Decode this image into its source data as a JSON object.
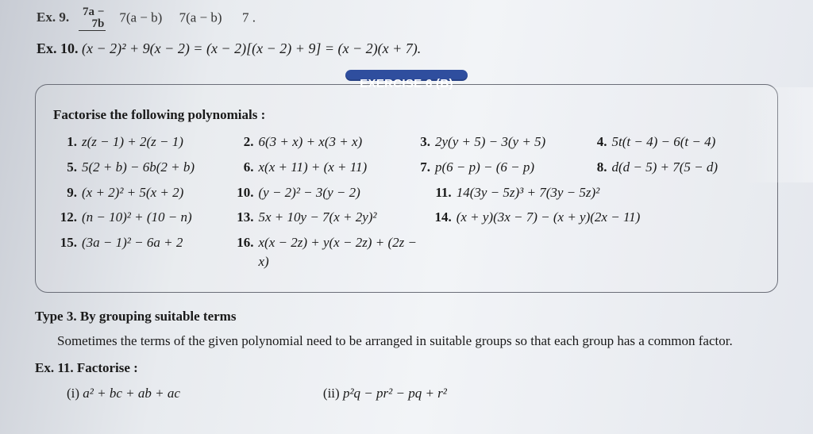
{
  "topline": {
    "ex": "Ex. 9.",
    "f1n": "7a − 7b",
    "t1": "7(a − b)",
    "t2": "7(a − b)",
    "t3": "7"
  },
  "ex10": {
    "label": "Ex. 10.",
    "expr": "(x − 2)² + 9(x − 2) = (x − 2)[(x − 2) + 9] = (x − 2)(x + 7)."
  },
  "pill": "EXERCISE 6 (B)",
  "instruction": "Factorise the following polynomials :",
  "items": [
    {
      "n": "1.",
      "e": "z(z − 1) + 2(z − 1)",
      "w": "w1"
    },
    {
      "n": "2.",
      "e": "6(3 + x) + x(3 + x)",
      "w": "w1"
    },
    {
      "n": "3.",
      "e": "2y(y + 5) − 3(y + 5)",
      "w": "w1"
    },
    {
      "n": "4.",
      "e": "5t(t − 4) − 6(t − 4)",
      "w": "w1"
    },
    {
      "n": "5.",
      "e": "5(2 + b) − 6b(2 + b)",
      "w": "w1"
    },
    {
      "n": "6.",
      "e": "x(x + 11) + (x + 11)",
      "w": "w1"
    },
    {
      "n": "7.",
      "e": "p(6 − p) − (6 − p)",
      "w": "w1"
    },
    {
      "n": "8.",
      "e": "d(d − 5) + 7(5 − d)",
      "w": "w1"
    },
    {
      "n": "9.",
      "e": "(x + 2)² + 5(x + 2)",
      "w": "w1"
    },
    {
      "n": "10.",
      "e": "(y − 2)² − 3(y − 2)",
      "w": "w2"
    },
    {
      "n": "11.",
      "e": "14(3y − 5z)³ + 7(3y − 5z)²",
      "w": "w3"
    },
    {
      "n": "12.",
      "e": "(n − 10)² + (10 − n)",
      "w": "w1"
    },
    {
      "n": "13.",
      "e": "5x + 10y − 7(x + 2y)²",
      "w": "w2"
    },
    {
      "n": "14.",
      "e": "(x + y)(3x − 7) − (x + y)(2x − 11)",
      "w": "w3"
    },
    {
      "n": "15.",
      "e": "(3a − 1)² − 6a + 2",
      "w": "w1"
    },
    {
      "n": "16.",
      "e": "x(x − 2z) + y(x − 2z) + (2z − x)",
      "w": "w2"
    }
  ],
  "type3_head": "Type 3. By grouping suitable terms",
  "type3_para": "Sometimes the terms of the given polynomial need to be arranged in suitable groups so that each group has a common factor.",
  "ex11": {
    "label": "Ex. 11. Factorise :",
    "i_lbl": "(i) ",
    "i_expr": "a² + bc + ab + ac",
    "ii_lbl": "(ii) ",
    "ii_expr": "p²q − pr² − pq + r²"
  },
  "colors": {
    "pill_bg": "#2f4e9e",
    "pill_fg": "#ffffff",
    "box_border": "#6b6e78",
    "text": "#1a1a1a"
  }
}
